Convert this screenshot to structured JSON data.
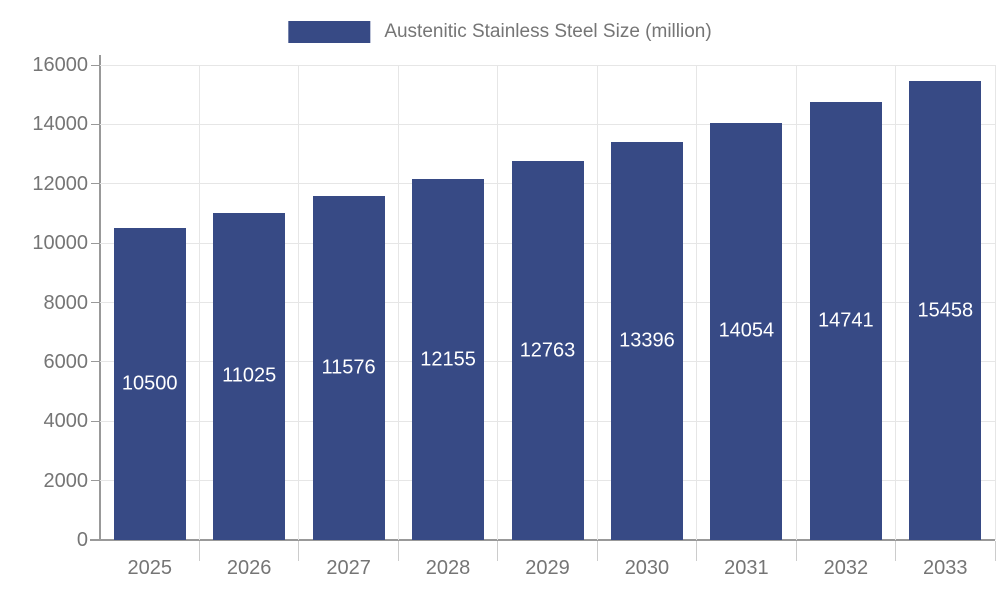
{
  "legend": {
    "label": "Austenitic Stainless Steel Size (million)"
  },
  "chart_data": {
    "type": "bar",
    "title": "Austenitic Stainless Steel Size (million)",
    "categories": [
      "2025",
      "2026",
      "2027",
      "2028",
      "2029",
      "2030",
      "2031",
      "2032",
      "2033"
    ],
    "values": [
      10500,
      11025,
      11576,
      12155,
      12763,
      13396,
      14054,
      14741,
      15458
    ],
    "xlabel": "",
    "ylabel": "",
    "ylim": [
      0,
      16000
    ],
    "ytick_step": 2000,
    "ytick_labels": [
      "0",
      "2000",
      "4000",
      "6000",
      "8000",
      "10000",
      "12000",
      "14000",
      "16000"
    ],
    "grid": true,
    "legend_position": "top-center",
    "value_labels": "inside-center-white",
    "colors": {
      "bar": "#374a85",
      "bar_value_text": "#ffffff",
      "axis": "#999999",
      "grid": "#e6e6e6",
      "tick_text": "#757575",
      "legend_text": "#757575",
      "background": "#ffffff"
    }
  }
}
